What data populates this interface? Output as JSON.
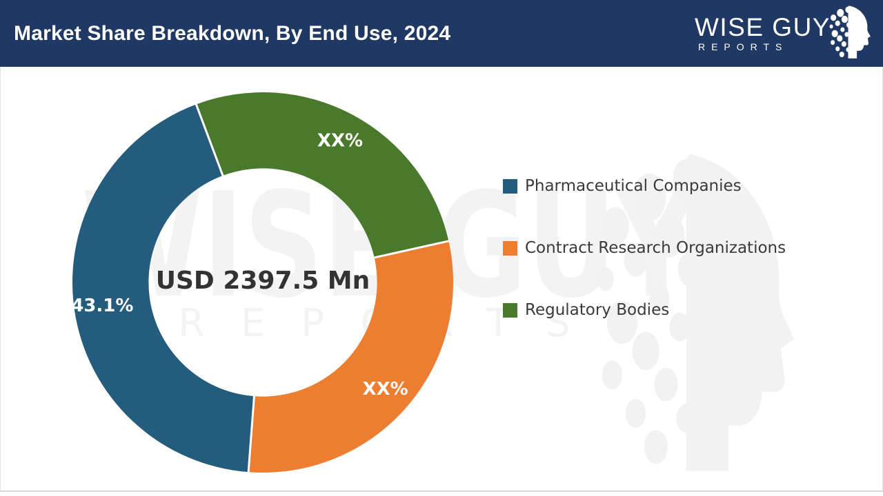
{
  "header": {
    "title": "Market Share Breakdown, By End Use, 2024",
    "logo": {
      "name": "WISE GUY",
      "tagline": "REPORTS"
    }
  },
  "watermark": {
    "line1": "WISE GUY",
    "line2": "REPORTS"
  },
  "chart_data": {
    "type": "pie",
    "subtype": "donut",
    "title": "Market Share Breakdown, By End Use, 2024",
    "center_label": "USD 2397.5 Mn",
    "donut_hole_ratio": 0.6,
    "start_angle_deg": 110.5,
    "direction": "counterclockwise",
    "legend_position": "right",
    "slices": [
      {
        "name": "Pharmaceutical Companies",
        "label": "43.1%",
        "value": 43.1,
        "color": "#245c7e"
      },
      {
        "name": "Contract Research Organizations",
        "label": "XX%",
        "value": 29.7,
        "color": "#ed7d31"
      },
      {
        "name": "Regulatory Bodies",
        "label": "XX%",
        "value": 27.2,
        "color": "#49792b"
      }
    ]
  },
  "colors": {
    "header_bg": "#1f3864",
    "slice_divider": "#ffffff",
    "center_text": "#333333",
    "legend_text": "#3a3a3a",
    "watermark": "#f2f2f2",
    "bottom_rule": "#d8d8d8"
  }
}
